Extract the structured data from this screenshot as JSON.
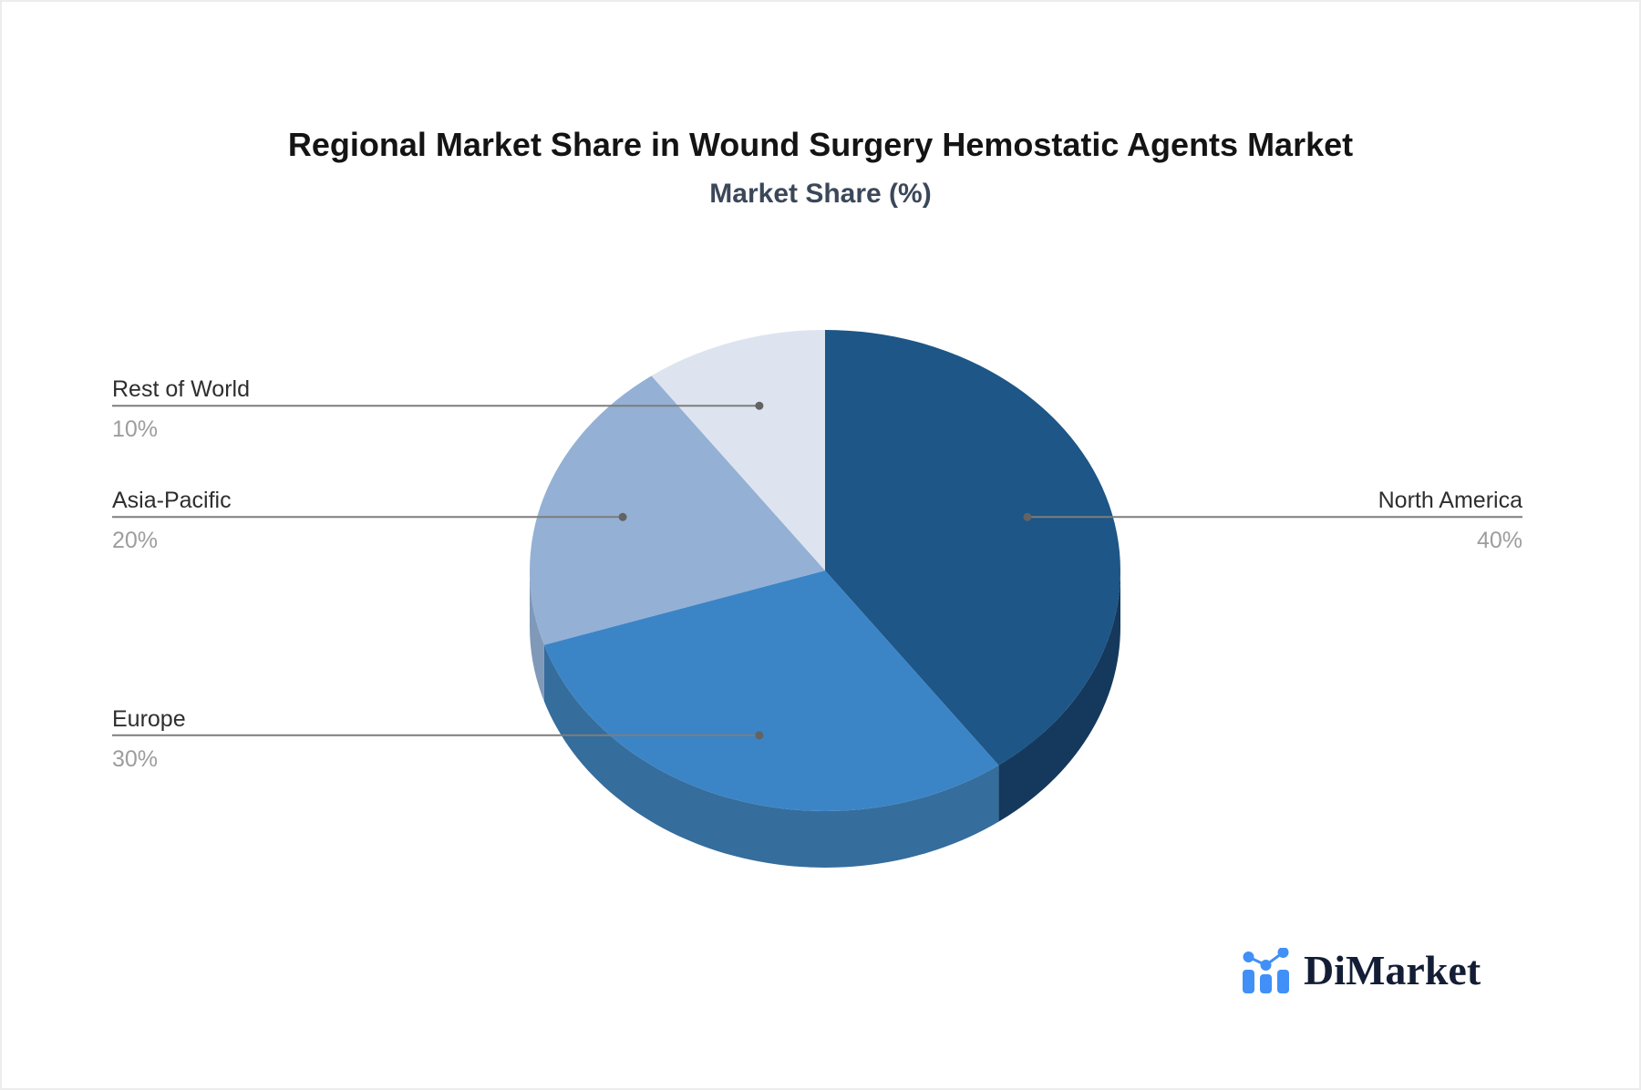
{
  "chart_data": {
    "type": "pie",
    "title": "Regional Market Share in Wound Surgery Hemostatic Agents Market",
    "subtitle": "Market Share (%)",
    "unit": "%",
    "legend_position": "callout-labels",
    "style": "3d-pie",
    "categories": [
      "North America",
      "Europe",
      "Asia-Pacific",
      "Rest of World"
    ],
    "values": [
      40,
      30,
      20,
      10
    ],
    "slices": [
      {
        "label": "North America",
        "value": 40,
        "pct_label": "40%",
        "color": "#1d5687",
        "side_color": "#15395c",
        "label_side": "right"
      },
      {
        "label": "Europe",
        "value": 30,
        "pct_label": "30%",
        "color": "#3b85c7",
        "side_color": "#356d9c",
        "label_side": "left"
      },
      {
        "label": "Asia-Pacific",
        "value": 20,
        "pct_label": "20%",
        "color": "#94b0d4",
        "side_color": "#8099b8",
        "label_side": "left"
      },
      {
        "label": "Rest of World",
        "value": 10,
        "pct_label": "10%",
        "color": "#dde4ef",
        "side_color": "#bcc8da",
        "label_side": "left"
      }
    ],
    "callout_line_color": "#7d7d7d",
    "callout_dot_color": "#636363",
    "label_text_color": "#2e2e2e",
    "percent_text_color": "#9d9d9d"
  },
  "logo": {
    "text": "DiMarket",
    "icon": "bar-chart-with-trend-dots-icon",
    "icon_color": "#4190f7",
    "text_color": "#131e36"
  }
}
